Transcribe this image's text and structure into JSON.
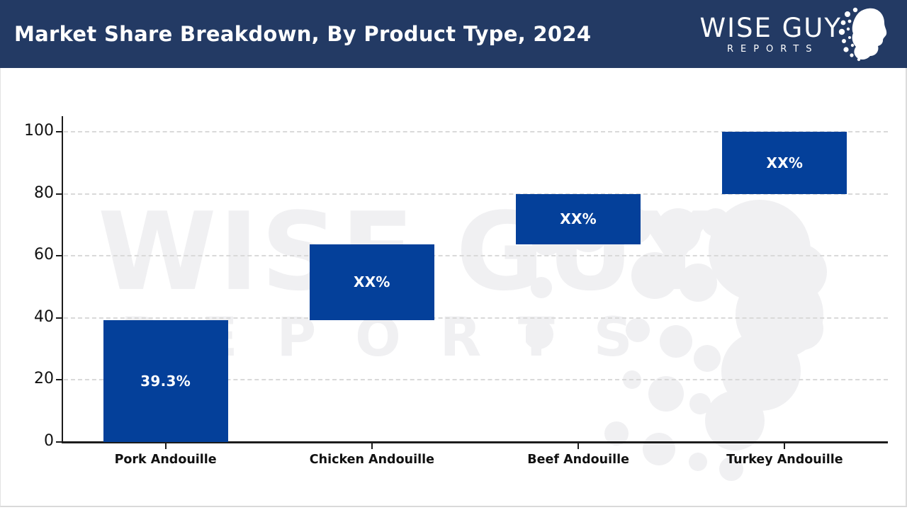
{
  "header": {
    "title": "Market Share Breakdown, By Product Type, 2024",
    "logo": {
      "wordmark": "WISE GUY",
      "subtext": "REPORTS",
      "head_icon": "head-profile-dots-icon"
    }
  },
  "watermark": {
    "line1": "WISE GUY",
    "line2": "REPORTS",
    "head_icon": "head-profile-dots-icon"
  },
  "chart_data": {
    "type": "bar",
    "subtype": "waterfall",
    "title": "Market Share Breakdown, By Product Type, 2024",
    "categories": [
      "Pork Andouille",
      "Chicken Andouille",
      "Beef Andouille",
      "Turkey Andouille"
    ],
    "segments": [
      {
        "category": "Pork Andouille",
        "start": 0,
        "end": 39.3,
        "label": "39.3%"
      },
      {
        "category": "Chicken Andouille",
        "start": 39.3,
        "end": 63.8,
        "label": "XX%"
      },
      {
        "category": "Beef Andouille",
        "start": 63.8,
        "end": 80.0,
        "label": "XX%"
      },
      {
        "category": "Turkey Andouille",
        "start": 80.0,
        "end": 100.0,
        "label": "XX%"
      }
    ],
    "ylim": [
      0,
      100
    ],
    "yticks": [
      0,
      20,
      40,
      60,
      80,
      100
    ],
    "xlabel": "",
    "ylabel": "",
    "legend": "none",
    "grid": "horizontal-dashed",
    "colors": {
      "bar": "#04409A",
      "bar_label": "#ffffff",
      "axis": "#1c1c1c",
      "gridline": "#d9d9d9",
      "header_bg": "#233a64",
      "header_text": "#ffffff",
      "watermark": "#f0f0f2"
    }
  }
}
